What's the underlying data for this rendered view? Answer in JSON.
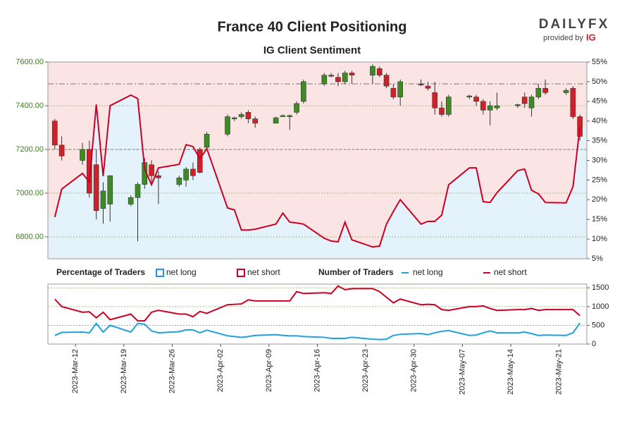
{
  "header": {
    "title": "France 40 Client Positioning",
    "subtitle": "IG Client Sentiment"
  },
  "logo": {
    "brand": "DAILYFX",
    "provided_by": "provided by",
    "partner": "IG"
  },
  "chart_data": [
    {
      "type": "candlestick",
      "x": [
        "2023-03-09",
        "2023-03-10",
        "2023-03-13",
        "2023-03-14",
        "2023-03-15",
        "2023-03-16",
        "2023-03-17",
        "2023-03-20",
        "2023-03-21",
        "2023-03-22",
        "2023-03-23",
        "2023-03-24",
        "2023-03-27",
        "2023-03-28",
        "2023-03-29",
        "2023-03-30",
        "2023-03-31",
        "2023-04-03",
        "2023-04-04",
        "2023-04-05",
        "2023-04-06",
        "2023-04-07",
        "2023-04-10",
        "2023-04-11",
        "2023-04-12",
        "2023-04-13",
        "2023-04-14",
        "2023-04-17",
        "2023-04-18",
        "2023-04-19",
        "2023-04-20",
        "2023-04-21",
        "2023-04-24",
        "2023-04-25",
        "2023-04-26",
        "2023-04-27",
        "2023-04-28",
        "2023-05-01",
        "2023-05-02",
        "2023-05-03",
        "2023-05-04",
        "2023-05-05",
        "2023-05-08",
        "2023-05-09",
        "2023-05-10",
        "2023-05-11",
        "2023-05-12",
        "2023-05-15",
        "2023-05-16",
        "2023-05-17",
        "2023-05-18",
        "2023-05-19",
        "2023-05-22",
        "2023-05-23",
        "2023-05-24"
      ],
      "open": [
        7330,
        7220,
        7150,
        7200,
        7130,
        6930,
        6950,
        6950,
        6980,
        7040,
        7130,
        7080,
        7040,
        7060,
        7110,
        7200,
        7210,
        7270,
        7340,
        7350,
        7370,
        7340,
        7320,
        7350,
        7350,
        7370,
        7420,
        7500,
        7540,
        7530,
        7510,
        7550,
        7540,
        7570,
        7540,
        7480,
        7440,
        7500,
        7490,
        7460,
        7390,
        7360,
        7440,
        7440,
        7420,
        7380,
        7390,
        7400,
        7440,
        7390,
        7440,
        7480,
        7460,
        7480,
        7350
      ],
      "high": [
        7340,
        7260,
        7230,
        7240,
        7200,
        7050,
        7080,
        6990,
        7050,
        7160,
        7150,
        7100,
        7080,
        7120,
        7140,
        7210,
        7280,
        7360,
        7350,
        7370,
        7380,
        7350,
        7350,
        7360,
        7360,
        7420,
        7520,
        7550,
        7550,
        7550,
        7560,
        7560,
        7590,
        7580,
        7550,
        7500,
        7520,
        7520,
        7510,
        7510,
        7420,
        7450,
        7450,
        7450,
        7430,
        7420,
        7460,
        7410,
        7460,
        7450,
        7500,
        7520,
        7480,
        7490,
        7360
      ],
      "low": [
        7200,
        7150,
        7130,
        6980,
        6880,
        6860,
        6870,
        6940,
        6780,
        7020,
        7040,
        6950,
        7030,
        7030,
        7060,
        7090,
        7200,
        7260,
        7330,
        7340,
        7320,
        7300,
        7320,
        7350,
        7290,
        7360,
        7410,
        7490,
        7530,
        7490,
        7500,
        7500,
        7500,
        7530,
        7480,
        7430,
        7400,
        7490,
        7470,
        7360,
        7350,
        7350,
        7430,
        7400,
        7360,
        7310,
        7380,
        7390,
        7390,
        7350,
        7430,
        7450,
        7450,
        7340,
        7240
      ],
      "close": [
        7220,
        7170,
        7200,
        7000,
        6920,
        7010,
        7080,
        6980,
        7040,
        7140,
        7080,
        7070,
        7070,
        7110,
        7080,
        7095,
        7270,
        7350,
        7345,
        7360,
        7340,
        7320,
        7345,
        7355,
        7355,
        7410,
        7510,
        7540,
        7535,
        7510,
        7550,
        7540,
        7580,
        7540,
        7490,
        7440,
        7510,
        7495,
        7480,
        7390,
        7360,
        7440,
        7445,
        7420,
        7380,
        7400,
        7400,
        7405,
        7410,
        7440,
        7480,
        7460,
        7470,
        7350,
        7260
      ],
      "up_color": "#3c8c22",
      "down_color": "#d0202a",
      "sentiment": {
        "color": "#cc0022",
        "axis": "y2",
        "values": [
          15.6,
          22.7,
          26.7,
          24.5,
          44.2,
          26,
          43.9,
          46.6,
          45.7,
          27.8,
          23.8,
          28.1,
          29,
          34,
          33.5,
          30.4,
          33,
          17.9,
          17.4,
          12.3,
          12.3,
          12.5,
          13.8,
          16.6,
          14.3,
          14.1,
          13.8,
          10.2,
          9.5,
          9.3,
          14.3,
          9.8,
          8,
          8.2,
          13.8,
          17,
          20,
          13.8,
          14.5,
          14.5,
          16.1,
          23.8,
          28.1,
          28.1,
          19.5,
          19.3,
          21.8,
          27.4,
          27.8,
          22.4,
          21.5,
          19.3,
          19.2,
          23.3,
          38.5
        ]
      },
      "xlim": [
        "2023-03-08",
        "2023-05-25"
      ],
      "ylim": [
        6700,
        7600
      ],
      "yticks": [
        {
          "value": 6800,
          "label": "6800.00"
        },
        {
          "value": 7000,
          "label": "7000.00"
        },
        {
          "value": 7200,
          "label": "7200.00"
        },
        {
          "value": 7400,
          "label": "7400.00"
        },
        {
          "value": 7600,
          "label": "7600.00"
        }
      ],
      "y2lim": [
        5,
        55
      ],
      "y2ticks": [
        {
          "value": 5,
          "label": "5%"
        },
        {
          "value": 10,
          "label": "10%"
        },
        {
          "value": 15,
          "label": "15%"
        },
        {
          "value": 20,
          "label": "20%"
        },
        {
          "value": 25,
          "label": "25%"
        },
        {
          "value": 30,
          "label": "30%"
        },
        {
          "value": 35,
          "label": "35%"
        },
        {
          "value": 40,
          "label": "40%"
        },
        {
          "value": 45,
          "label": "45%"
        },
        {
          "value": 50,
          "label": "50%"
        },
        {
          "value": 55,
          "label": "55%"
        }
      ],
      "reference_lines": [
        7500,
        7200
      ],
      "grid": true,
      "legend_title": "Percentage of Traders",
      "legend": [
        {
          "name": "net long",
          "color": "#1e90ff",
          "fill": "#e4f2fb"
        },
        {
          "name": "net short",
          "color": "#cc0022",
          "fill": "#fbe4e4"
        }
      ]
    },
    {
      "type": "line",
      "x": [
        "2023-03-09",
        "2023-03-10",
        "2023-03-13",
        "2023-03-14",
        "2023-03-15",
        "2023-03-16",
        "2023-03-17",
        "2023-03-20",
        "2023-03-21",
        "2023-03-22",
        "2023-03-23",
        "2023-03-24",
        "2023-03-27",
        "2023-03-28",
        "2023-03-29",
        "2023-03-30",
        "2023-03-31",
        "2023-04-03",
        "2023-04-04",
        "2023-04-05",
        "2023-04-06",
        "2023-04-07",
        "2023-04-10",
        "2023-04-11",
        "2023-04-12",
        "2023-04-13",
        "2023-04-14",
        "2023-04-17",
        "2023-04-18",
        "2023-04-19",
        "2023-04-20",
        "2023-04-21",
        "2023-04-24",
        "2023-04-25",
        "2023-04-26",
        "2023-04-27",
        "2023-04-28",
        "2023-05-01",
        "2023-05-02",
        "2023-05-03",
        "2023-05-04",
        "2023-05-05",
        "2023-05-08",
        "2023-05-09",
        "2023-05-10",
        "2023-05-11",
        "2023-05-12",
        "2023-05-15",
        "2023-05-16",
        "2023-05-17",
        "2023-05-18",
        "2023-05-19",
        "2023-05-22",
        "2023-05-23",
        "2023-05-24"
      ],
      "legend_title": "Number of Traders",
      "series": [
        {
          "name": "net long",
          "color": "#1ea0e0",
          "values": [
            230,
            310,
            320,
            300,
            550,
            320,
            500,
            320,
            550,
            530,
            350,
            300,
            330,
            380,
            380,
            300,
            370,
            220,
            200,
            180,
            200,
            230,
            250,
            230,
            220,
            220,
            200,
            180,
            150,
            150,
            150,
            180,
            130,
            120,
            130,
            230,
            260,
            280,
            250,
            300,
            340,
            360,
            230,
            240,
            300,
            350,
            300,
            300,
            320,
            280,
            230,
            240,
            230,
            300,
            560
          ]
        },
        {
          "name": "net short",
          "color": "#cc0022",
          "values": [
            1200,
            1000,
            850,
            860,
            700,
            850,
            650,
            800,
            620,
            620,
            850,
            900,
            800,
            800,
            730,
            870,
            820,
            1050,
            1060,
            1070,
            1180,
            1150,
            1150,
            1150,
            1150,
            1400,
            1350,
            1370,
            1350,
            1550,
            1450,
            1480,
            1480,
            1400,
            1250,
            1100,
            1200,
            1050,
            1060,
            1050,
            920,
            900,
            1000,
            1000,
            1020,
            950,
            900,
            920,
            920,
            950,
            900,
            920,
            920,
            920,
            760
          ]
        }
      ],
      "xlim": [
        "2023-03-08",
        "2023-05-25"
      ],
      "xticks": [
        {
          "value": "2023-03-12",
          "label": "2023-Mar-12"
        },
        {
          "value": "2023-03-19",
          "label": "2023-Mar-19"
        },
        {
          "value": "2023-03-26",
          "label": "2023-Mar-26"
        },
        {
          "value": "2023-04-02",
          "label": "2023-Apr-02"
        },
        {
          "value": "2023-04-09",
          "label": "2023-Apr-09"
        },
        {
          "value": "2023-04-16",
          "label": "2023-Apr-16"
        },
        {
          "value": "2023-04-23",
          "label": "2023-Apr-23"
        },
        {
          "value": "2023-04-30",
          "label": "2023-Apr-30"
        },
        {
          "value": "2023-05-07",
          "label": "2023-May-07"
        },
        {
          "value": "2023-05-14",
          "label": "2023-May-14"
        },
        {
          "value": "2023-05-21",
          "label": "2023-May-21"
        }
      ],
      "ylim": [
        0,
        1600
      ],
      "yticks": [
        0,
        500,
        1000,
        1500
      ],
      "grid": true
    }
  ]
}
